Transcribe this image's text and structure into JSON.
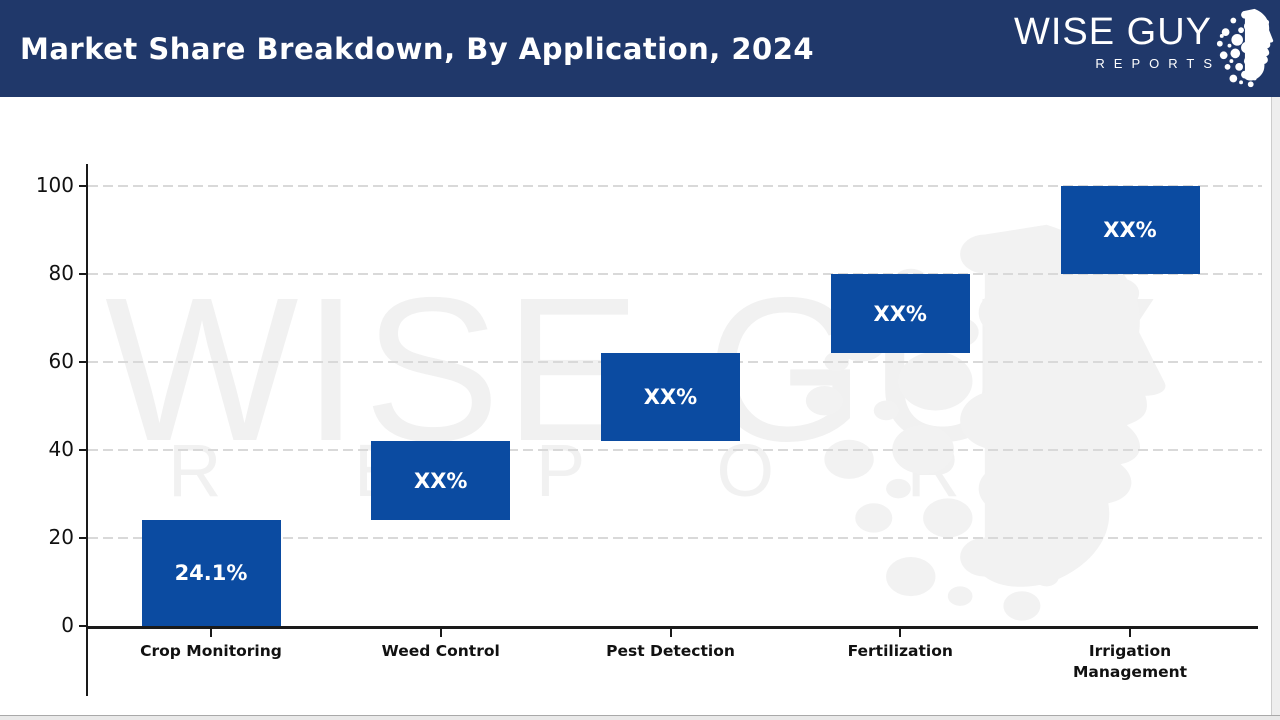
{
  "header": {
    "title": "Market Share Breakdown, By Application, 2024",
    "logo_line1": "WISE GUY",
    "logo_line2": "REPORTS"
  },
  "watermark": {
    "line1": "WISE GUY",
    "line2": "R E P O R T S"
  },
  "chart_data": {
    "type": "bar",
    "variant": "waterfall",
    "title": "Market Share Breakdown, By Application, 2024",
    "categories": [
      "Crop Monitoring",
      "Weed Control",
      "Pest Detection",
      "Fertilization",
      "Irrigation Management"
    ],
    "series": [
      {
        "name": "Market Share (%)",
        "segments": [
          {
            "category": "Crop Monitoring",
            "start": 0,
            "end": 24.1,
            "label": "24.1%"
          },
          {
            "category": "Weed Control",
            "start": 24.1,
            "end": 42,
            "label": "XX%"
          },
          {
            "category": "Pest Detection",
            "start": 42,
            "end": 62,
            "label": "XX%"
          },
          {
            "category": "Fertilization",
            "start": 62,
            "end": 80,
            "label": "XX%"
          },
          {
            "category": "Irrigation Management",
            "start": 80,
            "end": 100,
            "label": "XX%"
          }
        ]
      }
    ],
    "yticks": [
      0,
      20,
      40,
      60,
      80,
      100
    ],
    "ylim": [
      0,
      105
    ],
    "xlabel": "",
    "ylabel": "",
    "grid": {
      "horizontal": true,
      "style": "dashed"
    },
    "legend": null,
    "colors": {
      "bar": "#0b4ba1",
      "header_bg": "#20386a",
      "grid": "#d9d9d9",
      "axis": "#1a1a1a",
      "bar_label_text": "#ffffff",
      "title_text": "#ffffff"
    }
  }
}
